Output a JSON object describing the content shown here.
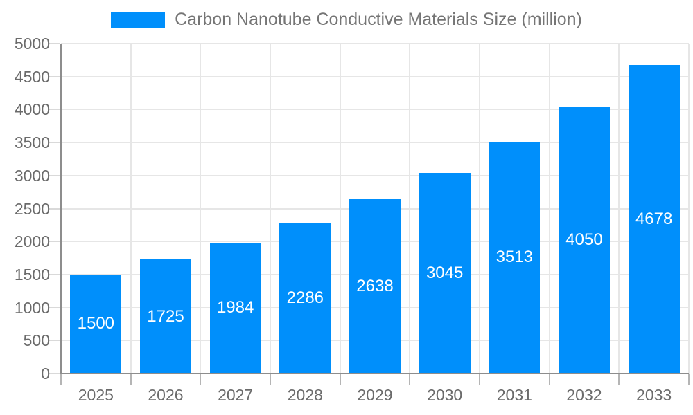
{
  "legend": {
    "label": "Carbon Nanotube Conductive Materials Size (million)",
    "swatch_color": "#008ffb"
  },
  "chart_data": {
    "type": "bar",
    "title": "Carbon Nanotube Conductive Materials Size (million)",
    "series_name": "Carbon Nanotube Conductive Materials Size (million)",
    "categories": [
      "2025",
      "2026",
      "2027",
      "2028",
      "2029",
      "2030",
      "2031",
      "2032",
      "2033"
    ],
    "values": [
      1500,
      1725,
      1984,
      2286,
      2638,
      3045,
      3513,
      4050,
      4678
    ],
    "value_labels": [
      "1500",
      "1725",
      "1984",
      "2286",
      "2638",
      "3045",
      "3513",
      "4050",
      "4678"
    ],
    "xlabel": "",
    "ylabel": "",
    "ylim": [
      0,
      5000
    ],
    "ytick_step": 500,
    "y_tick_labels": [
      "0",
      "500",
      "1000",
      "1500",
      "2000",
      "2500",
      "3000",
      "3500",
      "4000",
      "4500",
      "5000"
    ],
    "grid": true,
    "legend_position": "top",
    "bar_color": "#008ffb",
    "value_label_color": "#ffffff",
    "axis_text_color": "#6b6b6b",
    "title_text_color": "#757575"
  }
}
